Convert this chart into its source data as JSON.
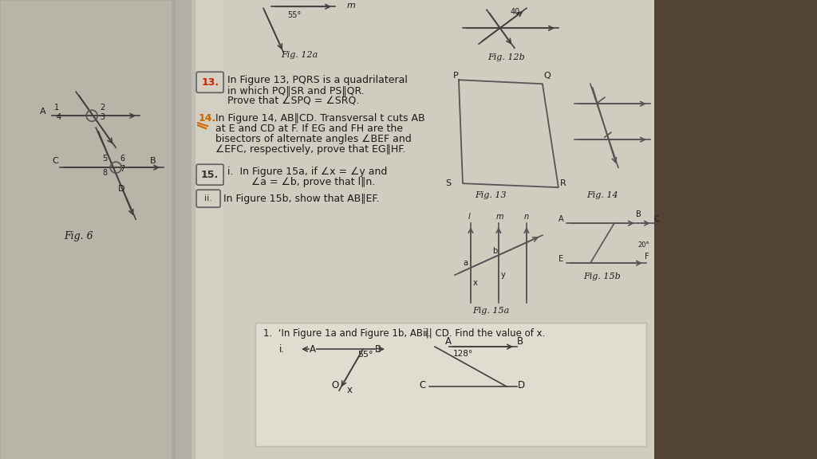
{
  "bg_color": "#9a9690",
  "page_left_color": "#cdc9be",
  "page_right_color": "#d2cec3",
  "spine_color": "#b8b4aa",
  "right_dark_color": "#5a4a3a",
  "fig12a_label": "Fig. 12a",
  "fig12b_label": "Fig. 12b",
  "fig13_label": "Fig. 13",
  "fig14_label": "Fig. 14",
  "fig15a_label": "Fig. 15a",
  "fig15b_label": "Fig. 15b",
  "fig6_label": "Fig. 6",
  "p13_line1": "In Figure 13, PQRS is a quadrilateral",
  "p13_line2": "in which PQ∥SR and PS∥QR.",
  "p13_line3": "Prove that ∠SPQ = ∠SRQ.",
  "p14_line0": "In Figure 14, AB∥CD. Transversal t cuts AB",
  "p14_line1": "at E and CD at F. If EG and FH are the",
  "p14_line2": "bisectors of alternate angles ∠BEF and",
  "p14_line3": "∠EFC, respectively, prove that EG∥HF.",
  "p15i_line1": "i.  In Figure 15a, if ∠x = ∠y and",
  "p15i_line2": "     ∠a = ∠b, prove that l∥n.",
  "p15ii_line": "In Figure 15b, show that AB∥EF.",
  "bottom_line1": "1.  ‘In Figure 1a and Figure 1b, AB || CD. Find the value of x.",
  "text_color": "#1a1a1a",
  "line_color": "#404040",
  "num13_color": "#cc2200",
  "num14_color": "#cc6600",
  "num15_color": "#333333"
}
